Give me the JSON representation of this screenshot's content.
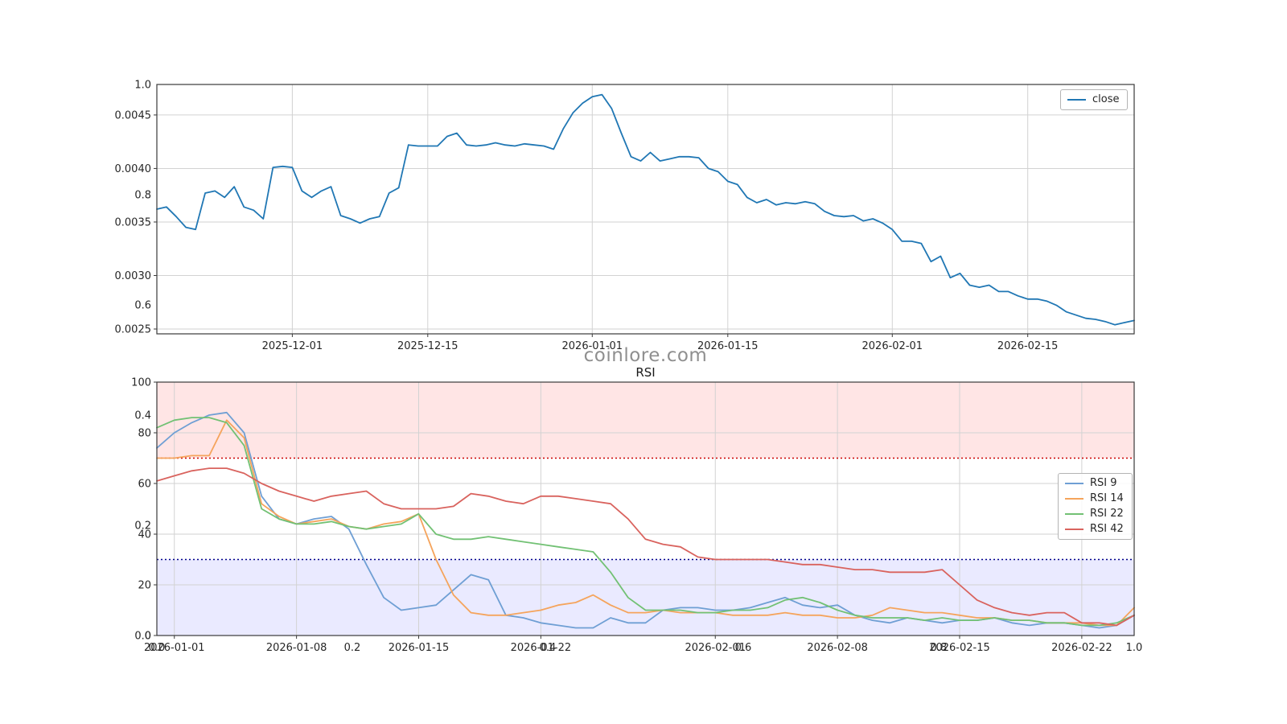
{
  "figure": {
    "watermark": "coinlore.com",
    "background": "#ffffff"
  },
  "overlay_axis": {
    "y_labels": [
      "1.0",
      "0.8",
      "0.6",
      "0.4",
      "0.2",
      "0.0"
    ],
    "x_labels": [
      "0.0",
      "0.2",
      "0.4",
      "0.6",
      "0.8",
      "1.0"
    ]
  },
  "chart_data": [
    {
      "id": "price",
      "type": "line",
      "title": "",
      "xlabel": "",
      "ylabel": "",
      "legend_position": "upper right",
      "grid": true,
      "ylim": [
        0.002455,
        0.004785
      ],
      "yticks": [
        {
          "label": "0.0025",
          "value": 0.0025
        },
        {
          "label": "0.0030",
          "value": 0.003
        },
        {
          "label": "0.0035",
          "value": 0.0035
        },
        {
          "label": "0.0040",
          "value": 0.004
        },
        {
          "label": "0.0045",
          "value": 0.0045
        }
      ],
      "xticks": [
        {
          "label": "2025-12-01",
          "pos": 0.1386
        },
        {
          "label": "2025-12-15",
          "pos": 0.2772
        },
        {
          "label": "2026-01-01",
          "pos": 0.4455
        },
        {
          "label": "2026-01-15",
          "pos": 0.5842
        },
        {
          "label": "2026-02-01",
          "pos": 0.7525
        },
        {
          "label": "2026-02-15",
          "pos": 0.8911
        }
      ],
      "series": [
        {
          "name": "close",
          "color": "#2077b4",
          "values": [
            0.00362,
            0.00364,
            0.00355,
            0.00345,
            0.00343,
            0.00377,
            0.00379,
            0.00373,
            0.00383,
            0.00364,
            0.00361,
            0.00353,
            0.00401,
            0.00402,
            0.00401,
            0.00379,
            0.00373,
            0.00379,
            0.00383,
            0.00356,
            0.00353,
            0.00349,
            0.00353,
            0.00355,
            0.00377,
            0.00382,
            0.00422,
            0.00421,
            0.00421,
            0.00421,
            0.0043,
            0.00433,
            0.00422,
            0.00421,
            0.00422,
            0.00424,
            0.00422,
            0.00421,
            0.00423,
            0.00422,
            0.00421,
            0.00418,
            0.00437,
            0.00452,
            0.00461,
            0.00467,
            0.00469,
            0.00456,
            0.00433,
            0.00411,
            0.00407,
            0.00415,
            0.00407,
            0.00409,
            0.00411,
            0.00411,
            0.0041,
            0.004,
            0.00397,
            0.00388,
            0.00385,
            0.00373,
            0.00368,
            0.00371,
            0.00366,
            0.00368,
            0.00367,
            0.00369,
            0.00367,
            0.0036,
            0.00356,
            0.00355,
            0.00356,
            0.00351,
            0.00353,
            0.00349,
            0.00343,
            0.00332,
            0.00332,
            0.0033,
            0.00313,
            0.00318,
            0.00298,
            0.00302,
            0.00291,
            0.00289,
            0.00291,
            0.00285,
            0.00285,
            0.00281,
            0.00278,
            0.00278,
            0.00276,
            0.00272,
            0.00266,
            0.00263,
            0.0026,
            0.00259,
            0.00257,
            0.00254,
            0.00256,
            0.00258
          ]
        }
      ]
    },
    {
      "id": "rsi",
      "type": "line",
      "title": "RSI",
      "xlabel": "",
      "ylabel": "",
      "legend_position": "right",
      "grid": true,
      "ylim": [
        0,
        100
      ],
      "yticks": [
        {
          "label": "0",
          "value": 0
        },
        {
          "label": "20",
          "value": 20
        },
        {
          "label": "40",
          "value": 40
        },
        {
          "label": "60",
          "value": 60
        },
        {
          "label": "80",
          "value": 80
        },
        {
          "label": "100",
          "value": 100
        }
      ],
      "xticks": [
        {
          "label": "2026-01-01",
          "pos": 0.0179
        },
        {
          "label": "2026-01-08",
          "pos": 0.1429
        },
        {
          "label": "2026-01-15",
          "pos": 0.2679
        },
        {
          "label": "2026-01-22",
          "pos": 0.3929
        },
        {
          "label": "2026-02-01",
          "pos": 0.5714
        },
        {
          "label": "2026-02-08",
          "pos": 0.6964
        },
        {
          "label": "2026-02-15",
          "pos": 0.8214
        },
        {
          "label": "2026-02-22",
          "pos": 0.9464
        }
      ],
      "bands": [
        {
          "from": 70,
          "to": 100,
          "color": "rgba(255,80,80,0.15)",
          "meaning": "overbought"
        },
        {
          "from": 0,
          "to": 30,
          "color": "rgba(90,90,255,0.13)",
          "meaning": "oversold"
        }
      ],
      "hlines": [
        {
          "value": 70,
          "color": "#cc0000",
          "style": "dotted"
        },
        {
          "value": 30,
          "color": "#00008b",
          "style": "dotted"
        }
      ],
      "series": [
        {
          "name": "RSI 9",
          "color": "#6f9fd4",
          "values": [
            74,
            80,
            84,
            87,
            88,
            80,
            55,
            46,
            44,
            46,
            47,
            42,
            28,
            15,
            10,
            11,
            12,
            18,
            24,
            22,
            8,
            7,
            5,
            4,
            3,
            3,
            7,
            5,
            5,
            10,
            11,
            11,
            10,
            10,
            11,
            13,
            15,
            12,
            11,
            12,
            8,
            6,
            5,
            7,
            6,
            5,
            6,
            6,
            7,
            5,
            4,
            5,
            5,
            4,
            3,
            4,
            8
          ]
        },
        {
          "name": "RSI 14",
          "color": "#f5a45c",
          "values": [
            70,
            70,
            71,
            71,
            85,
            78,
            52,
            47,
            44,
            45,
            46,
            43,
            42,
            44,
            45,
            48,
            30,
            16,
            9,
            8,
            8,
            9,
            10,
            12,
            13,
            16,
            12,
            9,
            9,
            10,
            9,
            9,
            9,
            8,
            8,
            8,
            9,
            8,
            8,
            7,
            7,
            8,
            11,
            10,
            9,
            9,
            8,
            7,
            7,
            6,
            6,
            5,
            5,
            5,
            4,
            4,
            11
          ]
        },
        {
          "name": "RSI 22",
          "color": "#72c174",
          "values": [
            82,
            85,
            86,
            86,
            84,
            75,
            50,
            46,
            44,
            44,
            45,
            43,
            42,
            43,
            44,
            48,
            40,
            38,
            38,
            39,
            38,
            37,
            36,
            35,
            34,
            33,
            25,
            15,
            10,
            10,
            10,
            9,
            9,
            10,
            10,
            11,
            14,
            15,
            13,
            10,
            8,
            7,
            7,
            7,
            6,
            7,
            6,
            6,
            7,
            6,
            6,
            5,
            5,
            4,
            4,
            5,
            8
          ]
        },
        {
          "name": "RSI 42",
          "color": "#d9635e",
          "values": [
            61,
            63,
            65,
            66,
            66,
            64,
            60,
            57,
            55,
            53,
            55,
            56,
            57,
            52,
            50,
            50,
            50,
            51,
            56,
            55,
            53,
            52,
            55,
            55,
            54,
            53,
            52,
            46,
            38,
            36,
            35,
            31,
            30,
            30,
            30,
            30,
            29,
            28,
            28,
            27,
            26,
            26,
            25,
            25,
            25,
            26,
            20,
            14,
            11,
            9,
            8,
            9,
            9,
            5,
            5,
            4,
            8
          ]
        }
      ]
    }
  ]
}
